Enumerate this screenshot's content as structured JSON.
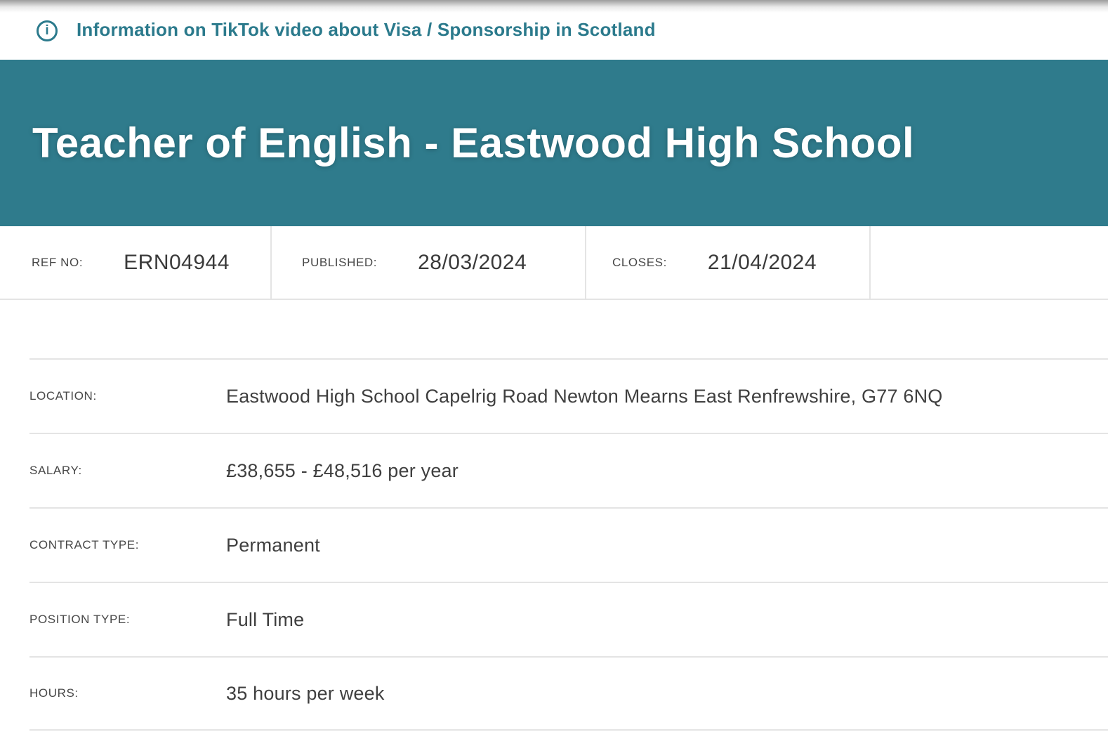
{
  "info_bar": {
    "icon": "info-icon",
    "icon_glyph": "i",
    "text": "Information on TikTok video about Visa / Sponsorship in Scotland"
  },
  "header": {
    "title": "Teacher of English - Eastwood High School"
  },
  "meta": {
    "items": [
      {
        "label": "REF NO:",
        "value": "ERN04944"
      },
      {
        "label": "PUBLISHED:",
        "value": "28/03/2024"
      },
      {
        "label": "CLOSES:",
        "value": "21/04/2024"
      }
    ]
  },
  "details": {
    "rows": [
      {
        "label": "LOCATION:",
        "value": "Eastwood High School Capelrig Road Newton Mearns East Renfrewshire, G77 6NQ"
      },
      {
        "label": "SALARY:",
        "value": "£38,655 - £48,516 per year"
      },
      {
        "label": "CONTRACT TYPE:",
        "value": "Permanent"
      },
      {
        "label": "POSITION TYPE:",
        "value": "Full Time"
      },
      {
        "label": "HOURS:",
        "value": "35 hours per week"
      }
    ]
  },
  "colors": {
    "teal_banner": "#2f7b8c",
    "link_teal": "#2b7a8c",
    "label_gray": "#474747",
    "value_gray": "#3f3f3f",
    "divider": "#e4e4e4"
  }
}
